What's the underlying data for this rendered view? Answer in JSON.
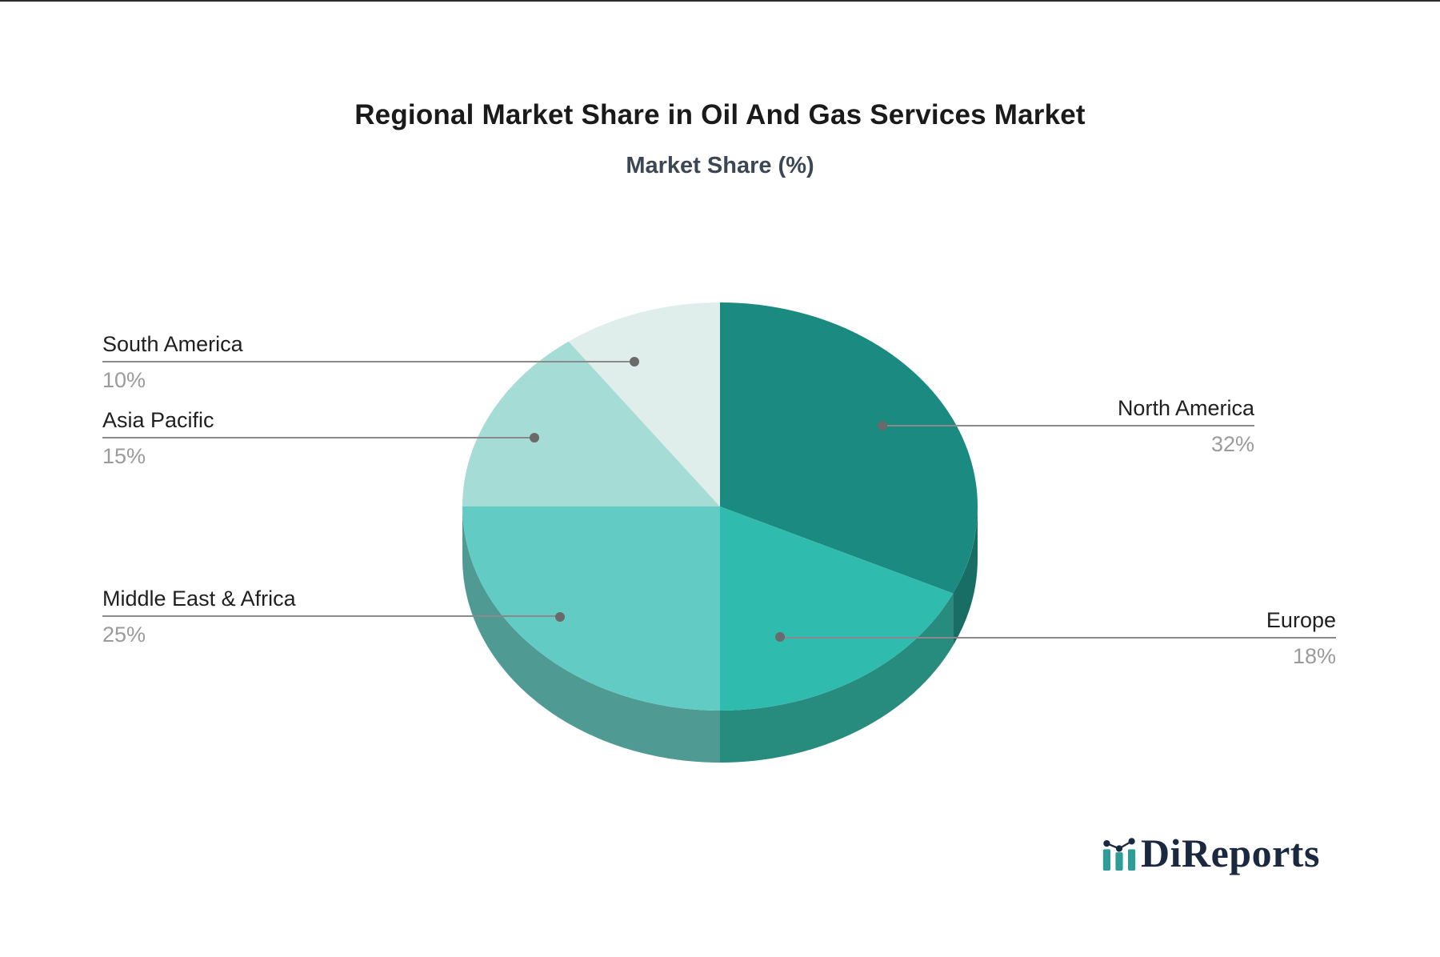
{
  "chart_data": {
    "type": "pie",
    "title": "Regional Market Share in Oil And Gas Services Market",
    "subtitle": "Market Share (%)",
    "unit": "%",
    "style": "3d",
    "start_angle_deg": 0,
    "direction": "clockwise",
    "total": 100,
    "slices": [
      {
        "label": "North America",
        "value": 32,
        "display_value": "32%",
        "color": "#1b8a80",
        "depth_color": "#186d64"
      },
      {
        "label": "Europe",
        "value": 18,
        "display_value": "18%",
        "color": "#2fbcae",
        "depth_color": "#278b7e"
      },
      {
        "label": "Middle East & Africa",
        "value": 25,
        "display_value": "25%",
        "color": "#62ccc4",
        "depth_color": "#4f9b94"
      },
      {
        "label": "Asia Pacific",
        "value": 15,
        "display_value": "15%",
        "color": "#a5dcd6",
        "depth_color": "#86c2bc"
      },
      {
        "label": "South America",
        "value": 10,
        "display_value": "10%",
        "color": "#dfedeb",
        "depth_color": "#c2d9d6"
      }
    ],
    "legend_position": "callout-labels",
    "colors": {
      "title": "#1a1a1a",
      "subtitle": "#3b4754",
      "label": "#1f1f1f",
      "value": "#9b9b9b",
      "leader_line": "#8a8a8a",
      "leader_dot": "#6a6a6a"
    }
  },
  "logo": {
    "text": "DiReports",
    "icon": "bar-line-chart-icon",
    "colors": {
      "bars": "#2f9d97",
      "dots": "#1b2940",
      "text": "#1b2940"
    }
  }
}
